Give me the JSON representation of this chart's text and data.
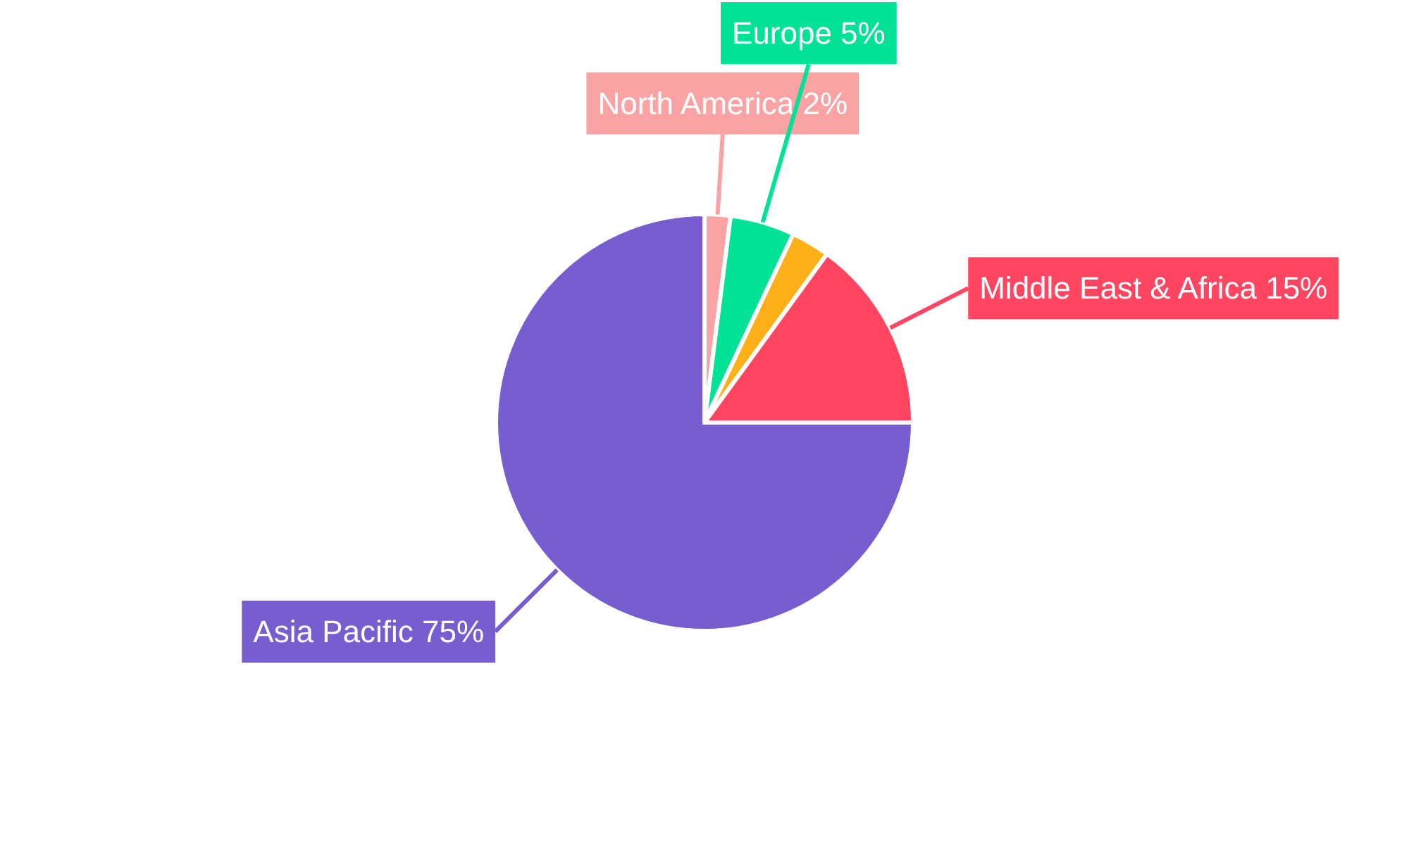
{
  "chart_data": {
    "type": "pie",
    "categories": [
      "North America",
      "Europe",
      null,
      "Middle East & Africa",
      "Asia Pacific"
    ],
    "values": [
      2,
      5,
      3,
      15,
      75
    ],
    "value_labels": [
      "2%",
      "5%",
      null,
      "15%",
      "75%"
    ],
    "colors": [
      "#f9a3a5",
      "#00e396",
      "#feb019",
      "#ff4560",
      "#775dd0"
    ]
  }
}
